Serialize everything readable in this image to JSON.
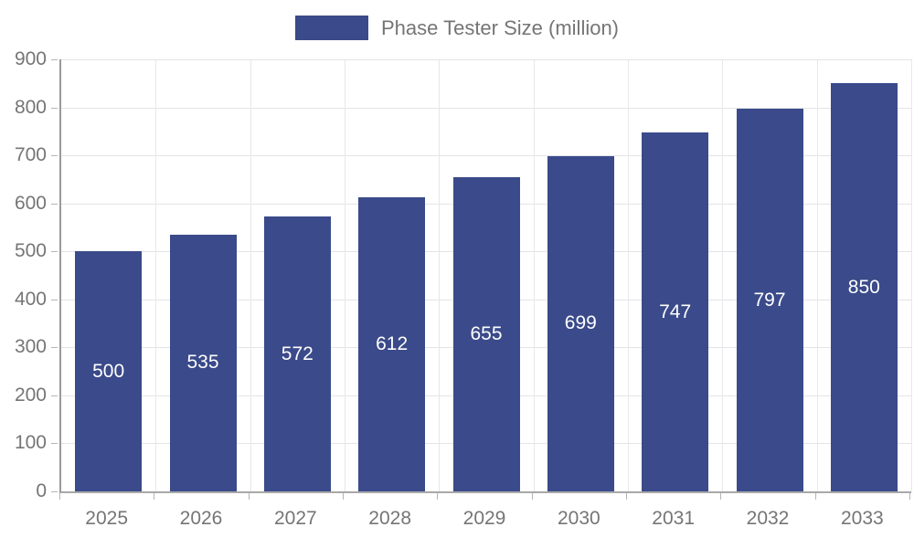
{
  "chart_data": {
    "type": "bar",
    "title": "Phase Tester Size (million)",
    "legend": [
      "Phase Tester Size (million)"
    ],
    "legend_position": "top",
    "categories": [
      "2025",
      "2026",
      "2027",
      "2028",
      "2029",
      "2030",
      "2031",
      "2032",
      "2033"
    ],
    "series": [
      {
        "name": "Phase Tester Size (million)",
        "values": [
          500,
          535,
          572,
          612,
          655,
          699,
          747,
          797,
          850
        ]
      }
    ],
    "xlabel": "",
    "ylabel": "",
    "ylim": [
      0,
      900
    ],
    "ytick_interval": 100,
    "yticks": [
      0,
      100,
      200,
      300,
      400,
      500,
      600,
      700,
      800,
      900
    ],
    "grid": true,
    "value_labels": "inside-center"
  },
  "colors": {
    "bar_fill": "#3A4A8A",
    "bar_label_text": "#ffffff",
    "axis_text": "#757575",
    "legend_text": "#757575",
    "gridline": "#e4e4e8",
    "axis_line": "#999999",
    "background": "#ffffff"
  }
}
